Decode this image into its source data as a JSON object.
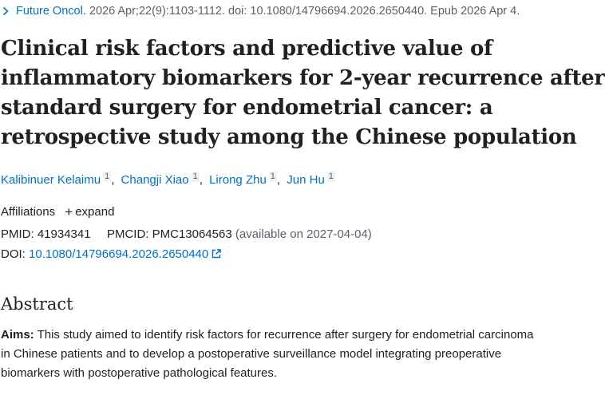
{
  "citation": {
    "journal": "Future Oncol.",
    "details": "2026 Apr;22(9):1103-1112. doi: 10.1080/14796694.2026.2650440. Epub 2026 Apr 4."
  },
  "article": {
    "title_lines": [
      "Clinical risk factors and predictive value of",
      "inflammatory biomarkers for 2-year recurrence after",
      "standard surgery for endometrial cancer: a",
      "retrospective study among the Chinese population"
    ]
  },
  "authors": [
    {
      "name": "Kalibinuer Kelaimu",
      "affiliation": "1"
    },
    {
      "name": "Changji Xiao",
      "affiliation": "1"
    },
    {
      "name": "Lirong Zhu",
      "affiliation": "1"
    },
    {
      "name": "Jun Hu",
      "affiliation": "1"
    }
  ],
  "author_separator": ",",
  "affiliations": {
    "label": "Affiliations",
    "expand_label": "expand",
    "expand_symbol": "+"
  },
  "ids": {
    "pmid_label": "PMID:",
    "pmid": "41934341",
    "pmcid_label": "PMCID:",
    "pmcid": "PMC13064563",
    "pmcid_note": "(available on 2027-04-04)",
    "doi_label": "DOI:",
    "doi": "10.1080/14796694.2026.2650440"
  },
  "abstract": {
    "heading": "Abstract",
    "aims_label": "Aims:",
    "lines": [
      "This study aimed to identify risk factors for recurrence after surgery for endometrial carcinoma",
      "in Chinese patients and to develop a postoperative surveillance model integrating preoperative",
      "biomarkers with postoperative pathological features."
    ]
  },
  "icons": {
    "journal_chevron": "chevron-right-icon",
    "doi_link": "external-link-icon"
  },
  "colors": {
    "link": "#0071bc",
    "text": "#212121",
    "muted": "#5b616b"
  }
}
